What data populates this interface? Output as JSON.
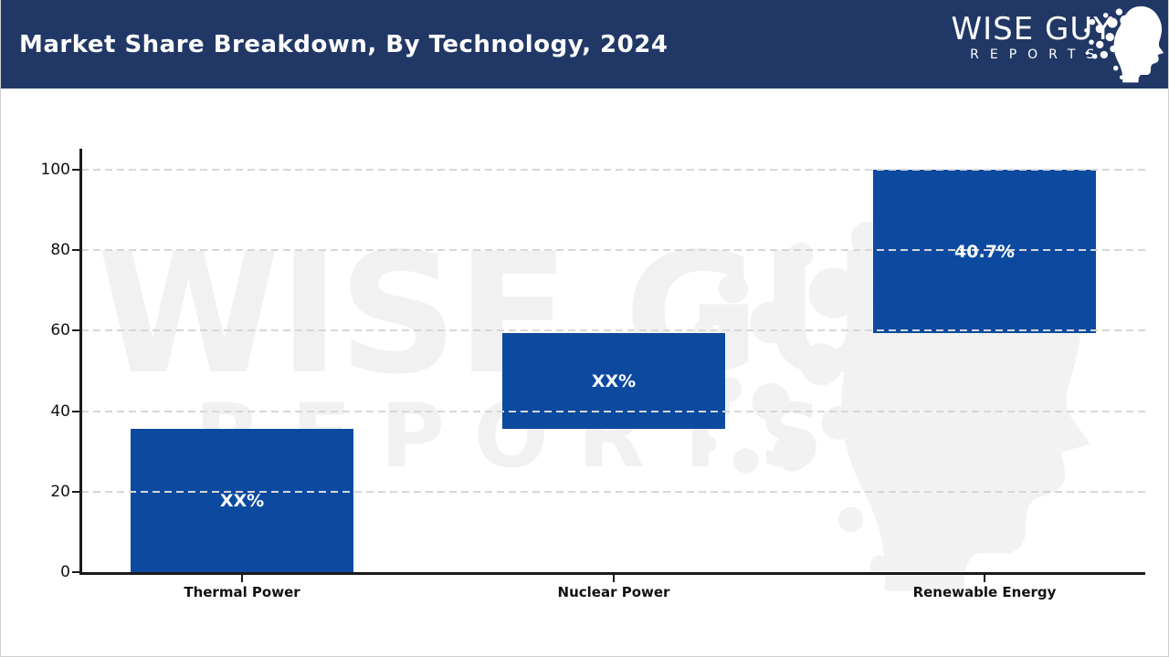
{
  "header": {
    "title": "Market Share Breakdown, By Technology, 2024",
    "bg_color": "#213866",
    "logo": {
      "line1": "WISE GUY",
      "line2": "REPORTS"
    }
  },
  "watermark": {
    "line1": "WISE GUY",
    "line2": "REPORTS",
    "color": "#f1f1f1"
  },
  "chart_data": {
    "type": "bar",
    "subtype": "floating-segment-waterfall",
    "title": "Market Share Breakdown, By Technology, 2024",
    "categories": [
      "Thermal Power",
      "Nuclear Power",
      "Renewable Energy"
    ],
    "series": [
      {
        "name": "Market Share (%)",
        "segments": [
          {
            "category": "Thermal Power",
            "from": 0,
            "to": 35.5
          },
          {
            "category": "Nuclear Power",
            "from": 35.5,
            "to": 59.3
          },
          {
            "category": "Renewable Energy",
            "from": 59.3,
            "to": 100
          }
        ]
      }
    ],
    "bar_labels": [
      "XX%",
      "XX%",
      "40.7%"
    ],
    "ylim": [
      0,
      105
    ],
    "yticks": [
      0,
      20,
      40,
      60,
      80,
      100
    ],
    "xlabel": "",
    "ylabel": "",
    "grid": "horizontal-dashed-above-bars",
    "legend_position": "none",
    "bar_color": "#0c4aa0",
    "grid_color": "#d7d7d7",
    "axis_color": "#1a1a1a"
  }
}
